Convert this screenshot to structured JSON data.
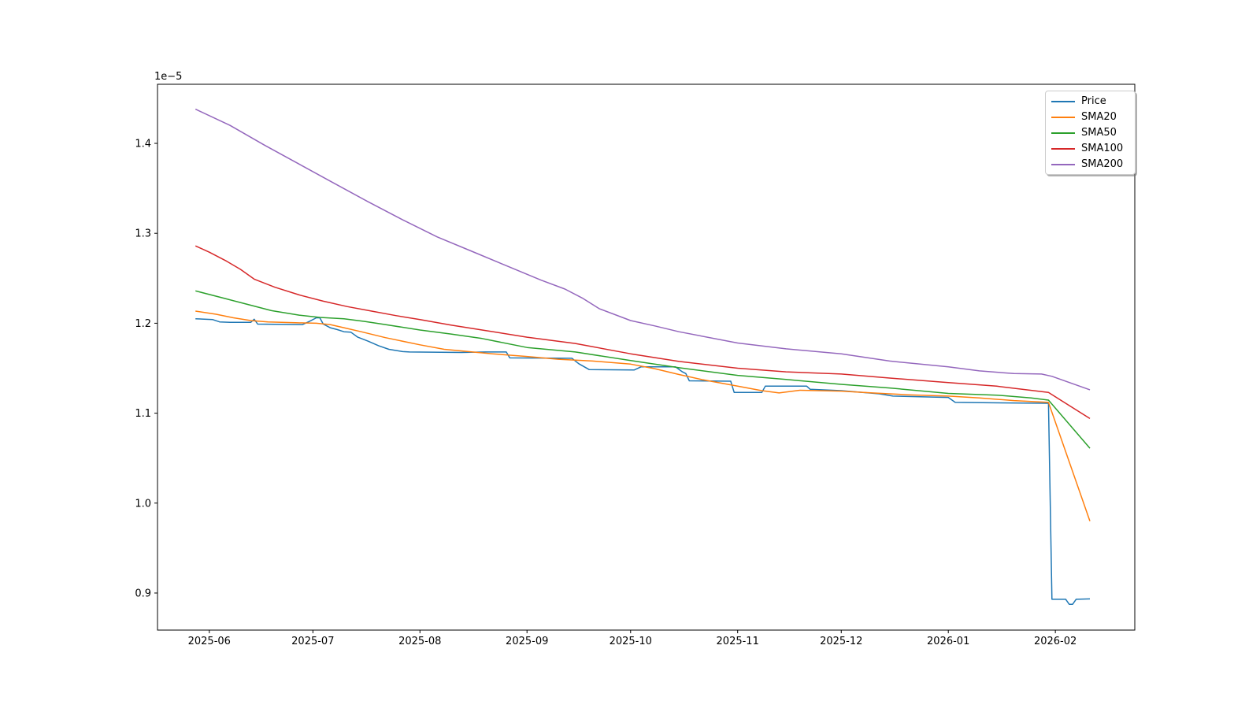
{
  "chart_data": {
    "type": "line",
    "title": "",
    "xlabel": "",
    "ylabel": "",
    "offset_text": "1e−5",
    "grid": false,
    "background": "#ffffff",
    "axes_edge_color": "#000000",
    "x_domain": [
      "2025-05-17",
      "2026-02-24"
    ],
    "y_domain": [
      0.8588,
      1.4657
    ],
    "y_unit_multiplier": "1e-5",
    "x_ticks": [
      {
        "date": "2025-06-01",
        "label": "2025-06"
      },
      {
        "date": "2025-07-01",
        "label": "2025-07"
      },
      {
        "date": "2025-08-01",
        "label": "2025-08"
      },
      {
        "date": "2025-09-01",
        "label": "2025-09"
      },
      {
        "date": "2025-10-01",
        "label": "2025-10"
      },
      {
        "date": "2025-11-01",
        "label": "2025-11"
      },
      {
        "date": "2025-12-01",
        "label": "2025-12"
      },
      {
        "date": "2026-01-01",
        "label": "2026-01"
      },
      {
        "date": "2026-02-01",
        "label": "2026-02"
      }
    ],
    "y_ticks": [
      0.9,
      1.0,
      1.1,
      1.2,
      1.3,
      1.4
    ],
    "legend": {
      "position": "upper right",
      "shadow": true
    },
    "series": [
      {
        "name": "Price",
        "color": "#1f77b4",
        "points": [
          [
            "2025-05-28",
            1.205
          ],
          [
            "2025-06-02",
            1.204
          ],
          [
            "2025-06-04",
            1.2015
          ],
          [
            "2025-06-07",
            1.201
          ],
          [
            "2025-06-13",
            1.201
          ],
          [
            "2025-06-14",
            1.2045
          ],
          [
            "2025-06-15",
            1.199
          ],
          [
            "2025-06-28",
            1.1985
          ],
          [
            "2025-06-30",
            1.202
          ],
          [
            "2025-07-02",
            1.206
          ],
          [
            "2025-07-03",
            1.206
          ],
          [
            "2025-07-04",
            1.199
          ],
          [
            "2025-07-06",
            1.195
          ],
          [
            "2025-07-08",
            1.193
          ],
          [
            "2025-07-10",
            1.1905
          ],
          [
            "2025-07-12",
            1.19
          ],
          [
            "2025-07-14",
            1.1845
          ],
          [
            "2025-07-17",
            1.18
          ],
          [
            "2025-07-20",
            1.175
          ],
          [
            "2025-07-23",
            1.171
          ],
          [
            "2025-07-27",
            1.1685
          ],
          [
            "2025-07-29",
            1.168
          ],
          [
            "2025-08-13",
            1.1675
          ],
          [
            "2025-08-20",
            1.168
          ],
          [
            "2025-08-26",
            1.168
          ],
          [
            "2025-08-27",
            1.1615
          ],
          [
            "2025-09-14",
            1.161
          ],
          [
            "2025-09-16",
            1.155
          ],
          [
            "2025-09-19",
            1.1485
          ],
          [
            "2025-10-02",
            1.148
          ],
          [
            "2025-10-04",
            1.1515
          ],
          [
            "2025-10-14",
            1.1515
          ],
          [
            "2025-10-16",
            1.146
          ],
          [
            "2025-10-17",
            1.144
          ],
          [
            "2025-10-18",
            1.136
          ],
          [
            "2025-10-30",
            1.1355
          ],
          [
            "2025-10-31",
            1.123
          ],
          [
            "2025-11-08",
            1.123
          ],
          [
            "2025-11-09",
            1.13
          ],
          [
            "2025-11-21",
            1.13
          ],
          [
            "2025-11-22",
            1.1265
          ],
          [
            "2025-12-01",
            1.125
          ],
          [
            "2025-12-12",
            1.1215
          ],
          [
            "2025-12-16",
            1.119
          ],
          [
            "2026-01-01",
            1.1175
          ],
          [
            "2026-01-03",
            1.112
          ],
          [
            "2026-01-29",
            1.111
          ],
          [
            "2026-01-30",
            1.111
          ],
          [
            "2026-01-31",
            0.893
          ],
          [
            "2026-02-04",
            0.893
          ],
          [
            "2026-02-05",
            0.8875
          ],
          [
            "2026-02-06",
            0.8875
          ],
          [
            "2026-02-07",
            0.893
          ],
          [
            "2026-02-11",
            0.8935
          ]
        ]
      },
      {
        "name": "SMA20",
        "color": "#ff7f0e",
        "points": [
          [
            "2025-05-28",
            1.2135
          ],
          [
            "2025-06-03",
            1.21
          ],
          [
            "2025-06-08",
            1.206
          ],
          [
            "2025-06-13",
            1.203
          ],
          [
            "2025-06-18",
            1.2015
          ],
          [
            "2025-06-26",
            1.2005
          ],
          [
            "2025-07-02",
            1.2
          ],
          [
            "2025-07-06",
            1.1985
          ],
          [
            "2025-07-10",
            1.195
          ],
          [
            "2025-07-15",
            1.1905
          ],
          [
            "2025-07-22",
            1.184
          ],
          [
            "2025-08-01",
            1.176
          ],
          [
            "2025-08-08",
            1.171
          ],
          [
            "2025-08-15",
            1.1685
          ],
          [
            "2025-08-22",
            1.166
          ],
          [
            "2025-09-01",
            1.163
          ],
          [
            "2025-09-10",
            1.16
          ],
          [
            "2025-09-20",
            1.158
          ],
          [
            "2025-10-01",
            1.1545
          ],
          [
            "2025-10-08",
            1.1495
          ],
          [
            "2025-10-15",
            1.143
          ],
          [
            "2025-10-22",
            1.137
          ],
          [
            "2025-11-01",
            1.13
          ],
          [
            "2025-11-08",
            1.125
          ],
          [
            "2025-11-13",
            1.1225
          ],
          [
            "2025-11-19",
            1.1255
          ],
          [
            "2025-12-01",
            1.1245
          ],
          [
            "2025-12-10",
            1.1225
          ],
          [
            "2025-12-20",
            1.1205
          ],
          [
            "2026-01-01",
            1.119
          ],
          [
            "2026-01-10",
            1.117
          ],
          [
            "2026-01-20",
            1.114
          ],
          [
            "2026-01-30",
            1.112
          ],
          [
            "2026-02-11",
            0.98
          ]
        ]
      },
      {
        "name": "SMA50",
        "color": "#2ca02c",
        "points": [
          [
            "2025-05-28",
            1.236
          ],
          [
            "2025-06-05",
            1.228
          ],
          [
            "2025-06-12",
            1.221
          ],
          [
            "2025-06-19",
            1.214
          ],
          [
            "2025-06-27",
            1.209
          ],
          [
            "2025-07-03",
            1.2065
          ],
          [
            "2025-07-10",
            1.205
          ],
          [
            "2025-07-16",
            1.202
          ],
          [
            "2025-07-22",
            1.1985
          ],
          [
            "2025-08-01",
            1.1925
          ],
          [
            "2025-08-10",
            1.188
          ],
          [
            "2025-08-19",
            1.183
          ],
          [
            "2025-09-01",
            1.173
          ],
          [
            "2025-09-15",
            1.168
          ],
          [
            "2025-10-01",
            1.1585
          ],
          [
            "2025-10-15",
            1.1505
          ],
          [
            "2025-11-01",
            1.142
          ],
          [
            "2025-11-15",
            1.1375
          ],
          [
            "2025-12-01",
            1.132
          ],
          [
            "2025-12-15",
            1.128
          ],
          [
            "2026-01-01",
            1.122
          ],
          [
            "2026-01-15",
            1.12
          ],
          [
            "2026-01-25",
            1.117
          ],
          [
            "2026-01-30",
            1.1145
          ],
          [
            "2026-02-11",
            1.061
          ]
        ]
      },
      {
        "name": "SMA100",
        "color": "#d62728",
        "points": [
          [
            "2025-05-28",
            1.286
          ],
          [
            "2025-06-01",
            1.279
          ],
          [
            "2025-06-06",
            1.269
          ],
          [
            "2025-06-10",
            1.26
          ],
          [
            "2025-06-14",
            1.249
          ],
          [
            "2025-06-20",
            1.24
          ],
          [
            "2025-06-27",
            1.2315
          ],
          [
            "2025-07-04",
            1.2245
          ],
          [
            "2025-07-11",
            1.2185
          ],
          [
            "2025-07-18",
            1.2135
          ],
          [
            "2025-07-25",
            1.2085
          ],
          [
            "2025-08-01",
            1.204
          ],
          [
            "2025-08-10",
            1.198
          ],
          [
            "2025-08-19",
            1.1925
          ],
          [
            "2025-09-01",
            1.1845
          ],
          [
            "2025-09-15",
            1.1775
          ],
          [
            "2025-10-01",
            1.166
          ],
          [
            "2025-10-15",
            1.1575
          ],
          [
            "2025-11-01",
            1.15
          ],
          [
            "2025-11-15",
            1.146
          ],
          [
            "2025-12-01",
            1.1435
          ],
          [
            "2025-12-15",
            1.139
          ],
          [
            "2026-01-01",
            1.134
          ],
          [
            "2026-01-15",
            1.13
          ],
          [
            "2026-01-30",
            1.123
          ],
          [
            "2026-02-11",
            1.094
          ]
        ]
      },
      {
        "name": "SMA200",
        "color": "#9467bd",
        "points": [
          [
            "2025-05-28",
            1.438
          ],
          [
            "2025-06-07",
            1.42
          ],
          [
            "2025-06-17",
            1.398
          ],
          [
            "2025-06-27",
            1.377
          ],
          [
            "2025-07-07",
            1.356
          ],
          [
            "2025-07-17",
            1.335
          ],
          [
            "2025-07-27",
            1.315
          ],
          [
            "2025-08-06",
            1.296
          ],
          [
            "2025-08-16",
            1.28
          ],
          [
            "2025-08-26",
            1.264
          ],
          [
            "2025-09-05",
            1.248
          ],
          [
            "2025-09-12",
            1.238
          ],
          [
            "2025-09-17",
            1.228
          ],
          [
            "2025-09-22",
            1.216
          ],
          [
            "2025-10-01",
            1.203
          ],
          [
            "2025-10-08",
            1.197
          ],
          [
            "2025-10-15",
            1.1905
          ],
          [
            "2025-11-01",
            1.178
          ],
          [
            "2025-11-15",
            1.1715
          ],
          [
            "2025-12-01",
            1.166
          ],
          [
            "2025-12-15",
            1.158
          ],
          [
            "2026-01-01",
            1.1515
          ],
          [
            "2026-01-10",
            1.147
          ],
          [
            "2026-01-20",
            1.144
          ],
          [
            "2026-01-28",
            1.1435
          ],
          [
            "2026-01-31",
            1.141
          ],
          [
            "2026-02-11",
            1.126
          ]
        ]
      }
    ]
  }
}
